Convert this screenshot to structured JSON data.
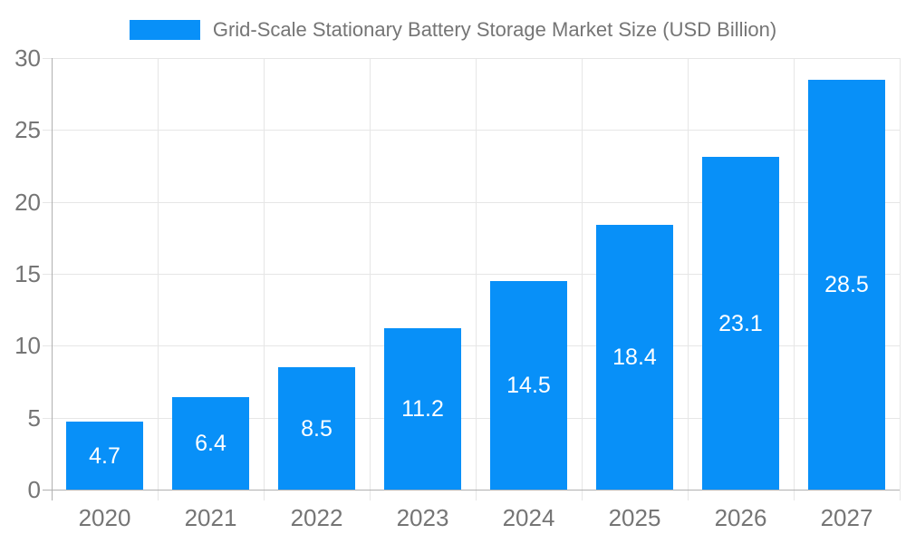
{
  "chart_data": {
    "type": "bar",
    "title": "Grid-Scale Stationary Battery Storage Market Size (USD Billion)",
    "categories": [
      "2020",
      "2021",
      "2022",
      "2023",
      "2024",
      "2025",
      "2026",
      "2027"
    ],
    "values": [
      4.7,
      6.4,
      8.5,
      11.2,
      14.5,
      18.4,
      23.1,
      28.5
    ],
    "value_labels": [
      "4.7",
      "6.4",
      "8.5",
      "11.2",
      "14.5",
      "18.4",
      "23.1",
      "28.5"
    ],
    "xlabel": "",
    "ylabel": "",
    "ylim": [
      0,
      30
    ],
    "yticks": [
      0,
      5,
      10,
      15,
      20,
      25,
      30
    ],
    "ytick_labels": [
      "0",
      "5",
      "10",
      "15",
      "20",
      "25",
      "30"
    ],
    "grid": true,
    "legend_position": "top",
    "colors": {
      "bar": "#0890f8",
      "bar_label": "#ffffff",
      "axis_text": "#757575",
      "gridline": "#e6e6e6",
      "axis_line": "#b0b0b0",
      "background": "#ffffff"
    }
  }
}
